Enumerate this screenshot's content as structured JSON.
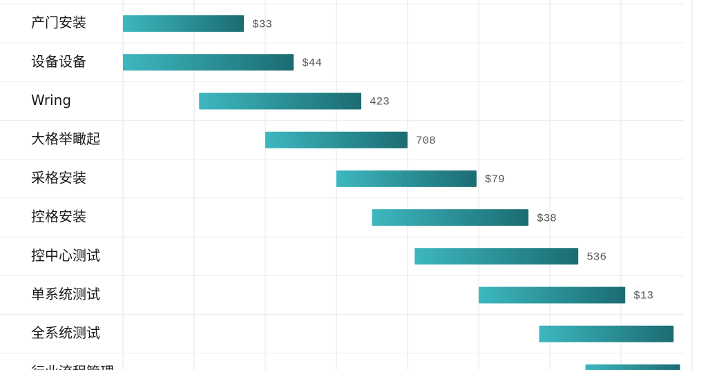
{
  "chart_data": {
    "type": "gantt",
    "categories": [
      "产门安装",
      "设备设备",
      "Wring",
      "大格举瞰起",
      "采格安装",
      "控格安装",
      "控中心测试",
      "单系统测试",
      "全系统测试",
      "行业流程管理"
    ],
    "start": [
      0,
      0,
      1.07,
      2.0,
      3.0,
      3.5,
      4.1,
      5.0,
      5.85,
      6.5
    ],
    "end": [
      1.7,
      2.4,
      3.35,
      4.0,
      4.97,
      5.7,
      6.4,
      7.06,
      7.74,
      7.83
    ],
    "labels": [
      "$33",
      "$44",
      "423",
      "708",
      "$79",
      "$38",
      "536",
      "$13",
      null,
      null
    ],
    "color": [
      "#3db7bf",
      "#1b6c72"
    ],
    "xlim": [
      0,
      8
    ],
    "xticks": [
      0,
      1,
      2,
      3,
      4,
      5,
      6,
      7,
      8
    ],
    "grid": true
  }
}
